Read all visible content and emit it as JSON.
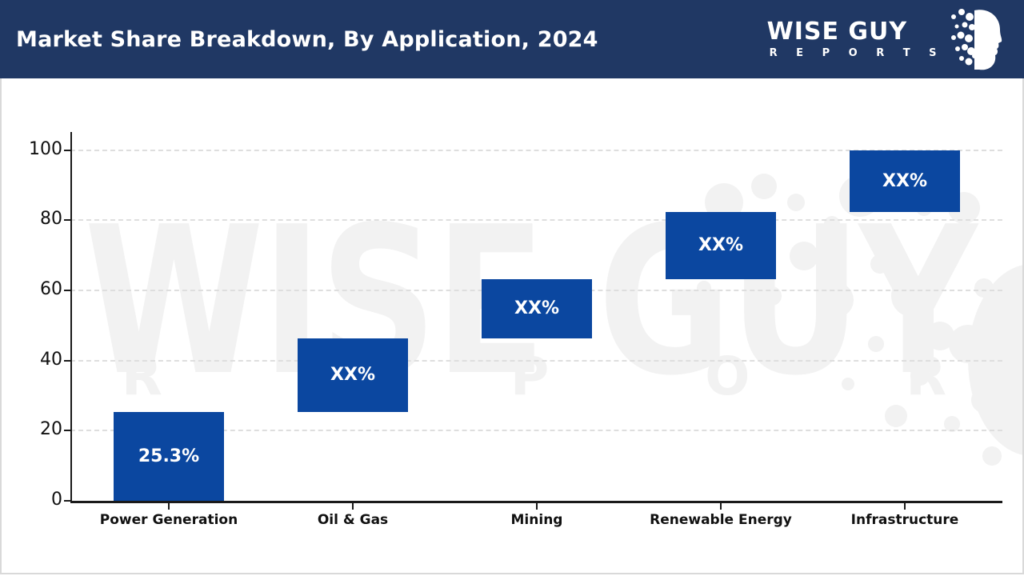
{
  "header": {
    "title": "Market Share Breakdown, By Application, 2024",
    "bg_color": "#203864",
    "logo": {
      "line1": "WISE GUY",
      "line2": "R E P O R T S"
    }
  },
  "watermark": {
    "line1": "WISE GUY",
    "line2": "R E P O R T S"
  },
  "chart_data": {
    "type": "bar",
    "subtype": "waterfall",
    "title": "Market Share Breakdown, By Application, 2024",
    "categories": [
      "Power Generation",
      "Oil & Gas",
      "Mining",
      "Renewable Energy",
      "Infrastructure"
    ],
    "segments": [
      {
        "category": "Power Generation",
        "start": 0,
        "end": 25.3,
        "label": "25.3%"
      },
      {
        "category": "Oil & Gas",
        "start": 25.3,
        "end": 46.4,
        "label": "XX%"
      },
      {
        "category": "Mining",
        "start": 46.4,
        "end": 63.2,
        "label": "XX%"
      },
      {
        "category": "Renewable Energy",
        "start": 63.2,
        "end": 82.4,
        "label": "XX%"
      },
      {
        "category": "Infrastructure",
        "start": 82.4,
        "end": 100,
        "label": "XX%"
      }
    ],
    "yticks": [
      0,
      20,
      40,
      60,
      80,
      100
    ],
    "ylim": [
      0,
      105
    ],
    "xlabel": "",
    "ylabel": "",
    "bar_color": "#0B47A0",
    "grid": "horizontal-dashed",
    "legend": "none"
  }
}
